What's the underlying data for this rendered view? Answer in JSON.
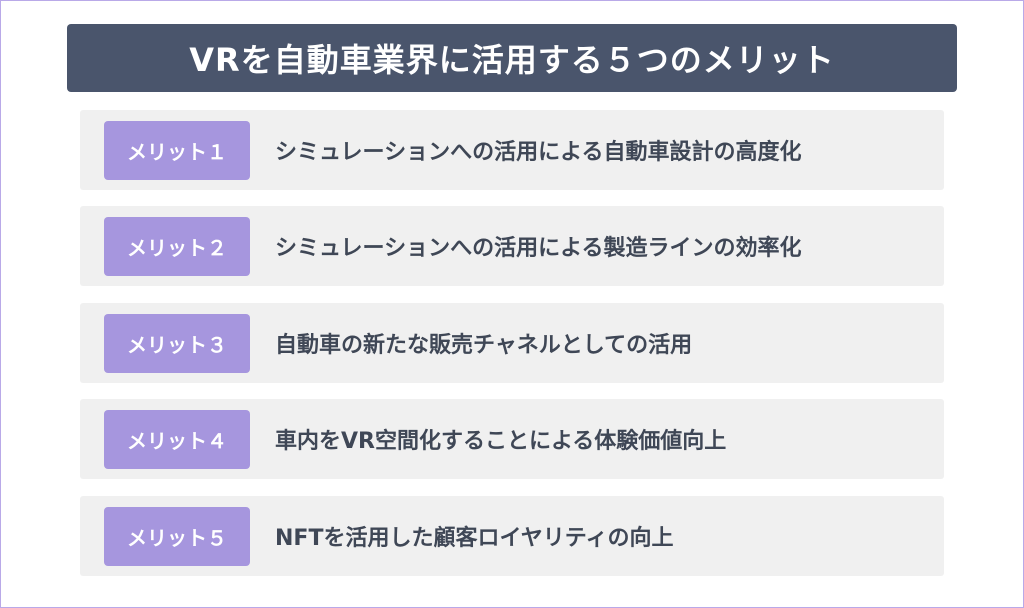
{
  "title": "VRを自動車業界に活用する５つのメリット",
  "items": [
    {
      "badge": "メリット１",
      "text": "シミュレーションへの活用による自動車設計の高度化"
    },
    {
      "badge": "メリット２",
      "text": "シミュレーションへの活用による製造ラインの効率化"
    },
    {
      "badge": "メリット３",
      "text": "自動車の新たな販売チャネルとしての活用"
    },
    {
      "badge": "メリット４",
      "text": "車内をVR空間化することによる体験価値向上"
    },
    {
      "badge": "メリット５",
      "text": "NFTを活用した顧客ロイヤリティの向上"
    }
  ],
  "colors": {
    "title_bg": "#4a556c",
    "badge_bg": "#a696de",
    "row_bg": "#f0f0f0",
    "text": "#3f4756",
    "border": "#b9a9e8"
  }
}
